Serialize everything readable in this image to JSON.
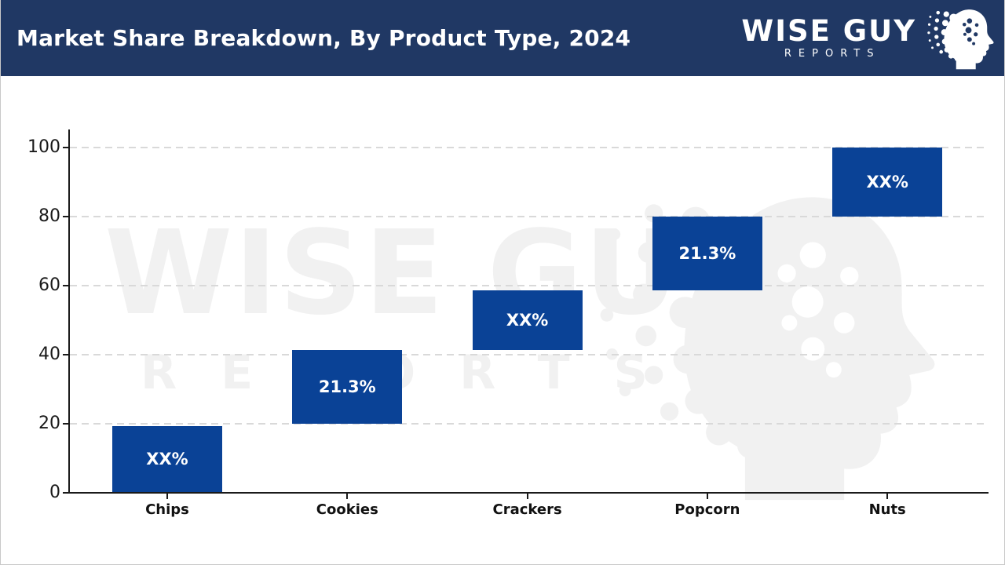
{
  "header": {
    "title": "Market Share Breakdown, By Product Type, 2024",
    "brand": {
      "line1": "WISE GUY",
      "line2": "REPORTS"
    },
    "colors": {
      "background": "#203864",
      "text": "#ffffff"
    }
  },
  "watermark": {
    "line1": "WISE GUY",
    "line2": "REPORTS"
  },
  "chart_data": {
    "type": "bar",
    "subtype": "floating-waterfall",
    "title": "Market Share Breakdown, By Product Type, 2024",
    "categories": [
      "Chips",
      "Cookies",
      "Crackers",
      "Popcorn",
      "Nuts"
    ],
    "bars": [
      {
        "category": "Chips",
        "base": 0,
        "top": 19.4,
        "label": "XX%"
      },
      {
        "category": "Cookies",
        "base": 20,
        "top": 41.3,
        "label": "21.3%"
      },
      {
        "category": "Crackers",
        "base": 41.3,
        "top": 58.6,
        "label": "XX%"
      },
      {
        "category": "Popcorn",
        "base": 58.7,
        "top": 80,
        "label": "21.3%"
      },
      {
        "category": "Nuts",
        "base": 80,
        "top": 100,
        "label": "XX%"
      }
    ],
    "ylim": [
      0,
      100
    ],
    "yticks": [
      0,
      20,
      40,
      60,
      80,
      100
    ],
    "xlabel": "",
    "ylabel": "",
    "legend": false,
    "grid": "horizontal-dashed",
    "colors": {
      "bar": "#0a4296",
      "bar_label": "#ffffff",
      "grid": "#d9d9d9",
      "axis": "#1a1a1a",
      "watermark": "#f1f1f1"
    }
  }
}
